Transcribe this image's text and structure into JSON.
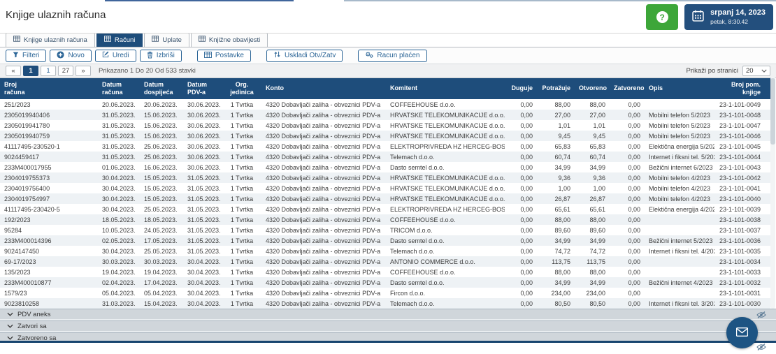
{
  "colors": {
    "primary": "#1e4d7b",
    "accent_blue": "#2a6496",
    "help_green": "#3da639",
    "row_alt": "#eef2f5"
  },
  "page": {
    "title": "Knjige ulaznih računa"
  },
  "header": {
    "help_glyph": "?",
    "date": "srpanj 14, 2023",
    "day_time": "petak, 8:30.42"
  },
  "tabs": [
    {
      "label": "Knjige ulaznih računa",
      "active": false
    },
    {
      "label": "Računi",
      "active": true
    },
    {
      "label": "Uplate",
      "active": false
    },
    {
      "label": "Knjižne obavijesti",
      "active": false
    }
  ],
  "toolbar": {
    "filter": "Filteri",
    "new": "Novo",
    "edit": "Uredi",
    "delete": "Izbriši",
    "settings": "Postavke",
    "sync": "Uskladi Otv/Zatv",
    "paid": "Racun plaćen"
  },
  "pagination": {
    "first": "«",
    "active_page": "1",
    "page_input": "1",
    "total_pages": "27",
    "next": "»",
    "status": "Prikazano 1 Do 20 Od 533 stavki",
    "per_page_label": "Prikaži po stranici",
    "per_page_value": "20"
  },
  "table": {
    "columns": [
      {
        "label": "Broj\nračuna"
      },
      {
        "label": "Datum\nračuna"
      },
      {
        "label": "Datum\ndospijeća"
      },
      {
        "label": "Datum\nPDV-a"
      },
      {
        "label": "Org. jedinica"
      },
      {
        "label": "Konto"
      },
      {
        "label": "Komitent"
      },
      {
        "label": "Duguje"
      },
      {
        "label": "Potražuje"
      },
      {
        "label": "Otvoreno"
      },
      {
        "label": "Zatvoreno"
      },
      {
        "label": "Opis"
      },
      {
        "label": "Broj pom. knjige"
      }
    ],
    "rows": [
      [
        "251/2023",
        "20.06.2023.",
        "20.06.2023.",
        "30.06.2023.",
        "1 Tvrtka",
        "4320 Dobavljači zaliha - obveznici PDV-a",
        "COFFEEHOUSE d.o.o.",
        "0,00",
        "88,00",
        "88,00",
        "0,00",
        "",
        "23-1-101-0049"
      ],
      [
        "2305019940406",
        "31.05.2023.",
        "15.06.2023.",
        "30.06.2023.",
        "1 Tvrtka",
        "4320 Dobavljači zaliha - obveznici PDV-a",
        "HRVATSKE TELEKOMUNIKACIJE d.o.o.",
        "0,00",
        "27,00",
        "27,00",
        "0,00",
        "Mobilni telefon 5/2023",
        "23-1-101-0048"
      ],
      [
        "2305019941780",
        "31.05.2023.",
        "15.06.2023.",
        "30.06.2023.",
        "1 Tvrtka",
        "4320 Dobavljači zaliha - obveznici PDV-a",
        "HRVATSKE TELEKOMUNIKACIJE d.o.o.",
        "0,00",
        "1,01",
        "1,01",
        "0,00",
        "Mobilni telefon 5/2023",
        "23-1-101-0047"
      ],
      [
        "2305019940759",
        "31.05.2023.",
        "15.06.2023.",
        "30.06.2023.",
        "1 Tvrtka",
        "4320 Dobavljači zaliha - obveznici PDV-a",
        "HRVATSKE TELEKOMUNIKACIJE d.o.o.",
        "0,00",
        "9,45",
        "9,45",
        "0,00",
        "Mobilni telefon 5/2023",
        "23-1-101-0046"
      ],
      [
        "41117495-230520-1",
        "31.05.2023.",
        "25.06.2023.",
        "30.06.2023.",
        "1 Tvrtka",
        "4320 Dobavljači zaliha - obveznici PDV-a",
        "ELEKTROPRIVREDA HZ HERCEG-BOSNE",
        "0,00",
        "65,83",
        "65,83",
        "0,00",
        "Elektična energija 5/2023",
        "23-1-101-0045"
      ],
      [
        "9024459417",
        "31.05.2023.",
        "25.06.2023.",
        "30.06.2023.",
        "1 Tvrtka",
        "4320 Dobavljači zaliha - obveznici PDV-a",
        "Telemach d.o.o.",
        "0,00",
        "60,74",
        "60,74",
        "0,00",
        "Internet i fiksni tel. 5/2023",
        "23-1-101-0044"
      ],
      [
        "233M400017955",
        "01.06.2023.",
        "16.06.2023.",
        "30.06.2023.",
        "1 Tvrtka",
        "4320 Dobavljači zaliha - obveznici PDV-a",
        "Dasto semtel d.o.o.",
        "0,00",
        "34,99",
        "34,99",
        "0,00",
        "Bežični internet 6/2023",
        "23-1-101-0043"
      ],
      [
        "2304019755373",
        "30.04.2023.",
        "15.05.2023.",
        "31.05.2023.",
        "1 Tvrtka",
        "4320 Dobavljači zaliha - obveznici PDV-a",
        "HRVATSKE TELEKOMUNIKACIJE d.o.o.",
        "0,00",
        "9,36",
        "9,36",
        "0,00",
        "Mobilni telefon 4/2023",
        "23-1-101-0042"
      ],
      [
        "2304019756400",
        "30.04.2023.",
        "15.05.2023.",
        "31.05.2023.",
        "1 Tvrtka",
        "4320 Dobavljači zaliha - obveznici PDV-a",
        "HRVATSKE TELEKOMUNIKACIJE d.o.o.",
        "0,00",
        "1,00",
        "1,00",
        "0,00",
        "Mobilni telefon 4/2023",
        "23-1-101-0041"
      ],
      [
        "2304019754997",
        "30.04.2023.",
        "15.05.2023.",
        "31.05.2023.",
        "1 Tvrtka",
        "4320 Dobavljači zaliha - obveznici PDV-a",
        "HRVATSKE TELEKOMUNIKACIJE d.o.o.",
        "0,00",
        "26,87",
        "26,87",
        "0,00",
        "Mobilni telefon 4/2023",
        "23-1-101-0040"
      ],
      [
        "41117495-230420-5",
        "30.04.2023.",
        "25.05.2023.",
        "31.05.2023.",
        "1 Tvrtka",
        "4320 Dobavljači zaliha - obveznici PDV-a",
        "ELEKTROPRIVREDA HZ HERCEG-BOSNE",
        "0,00",
        "65,61",
        "65,61",
        "0,00",
        "Elektična energija 4/2023",
        "23-1-101-0039"
      ],
      [
        "192/2023",
        "18.05.2023.",
        "18.05.2023.",
        "31.05.2023.",
        "1 Tvrtka",
        "4320 Dobavljači zaliha - obveznici PDV-a",
        "COFFEEHOUSE d.o.o.",
        "0,00",
        "88,00",
        "88,00",
        "0,00",
        "",
        "23-1-101-0038"
      ],
      [
        "95284",
        "10.05.2023.",
        "24.05.2023.",
        "31.05.2023.",
        "1 Tvrtka",
        "4320 Dobavljači zaliha - obveznici PDV-a",
        "TRICOM d.o.o.",
        "0,00",
        "89,60",
        "89,60",
        "0,00",
        "",
        "23-1-101-0037"
      ],
      [
        "233M400014396",
        "02.05.2023.",
        "17.05.2023.",
        "31.05.2023.",
        "1 Tvrtka",
        "4320 Dobavljači zaliha - obveznici PDV-a",
        "Dasto semtel d.o.o.",
        "0,00",
        "34,99",
        "34,99",
        "0,00",
        "Bežični internet 5/2023",
        "23-1-101-0036"
      ],
      [
        "9024147450",
        "30.04.2023.",
        "25.05.2023.",
        "31.05.2023.",
        "1 Tvrtka",
        "4320 Dobavljači zaliha - obveznici PDV-a",
        "Telemach d.o.o.",
        "0,00",
        "74,72",
        "74,72",
        "0,00",
        "Internet i fiksni tel. 4/2023",
        "23-1-101-0035"
      ],
      [
        "69-17/2023",
        "30.03.2023.",
        "30.03.2023.",
        "30.04.2023.",
        "1 Tvrtka",
        "4320 Dobavljači zaliha - obveznici PDV-a",
        "ANTONIO COMMERCE d.o.o.",
        "0,00",
        "113,75",
        "113,75",
        "0,00",
        "",
        "23-1-101-0034"
      ],
      [
        "135/2023",
        "19.04.2023.",
        "19.04.2023.",
        "30.04.2023.",
        "1 Tvrtka",
        "4320 Dobavljači zaliha - obveznici PDV-a",
        "COFFEEHOUSE d.o.o.",
        "0,00",
        "88,00",
        "88,00",
        "0,00",
        "",
        "23-1-101-0033"
      ],
      [
        "233M400010877",
        "02.04.2023.",
        "17.04.2023.",
        "30.04.2023.",
        "1 Tvrtka",
        "4320 Dobavljači zaliha - obveznici PDV-a",
        "Dasto semtel d.o.o.",
        "0,00",
        "34,99",
        "34,99",
        "0,00",
        "Bežični internet 4/2023",
        "23-1-101-0032"
      ],
      [
        "1579/23",
        "05.04.2023.",
        "05.04.2023.",
        "30.04.2023.",
        "1 Tvrtka",
        "4320 Dobavljači zaliha - obveznici PDV-a",
        "Fircon d.o.o.",
        "0,00",
        "234,00",
        "234,00",
        "0,00",
        "",
        "23-1-101-0031"
      ],
      [
        "9023810258",
        "31.03.2023.",
        "15.04.2023.",
        "30.04.2023.",
        "1 Tvrtka",
        "4320 Dobavljači zaliha - obveznici PDV-a",
        "Telemach d.o.o.",
        "0,00",
        "80,50",
        "80,50",
        "0,00",
        "Internet i fiksni tel. 3/2023",
        "23-1-101-0030"
      ]
    ]
  },
  "panels": [
    {
      "label": "PDV aneks"
    },
    {
      "label": "Zatvori sa"
    },
    {
      "label": "Zatvoreno sa"
    }
  ]
}
